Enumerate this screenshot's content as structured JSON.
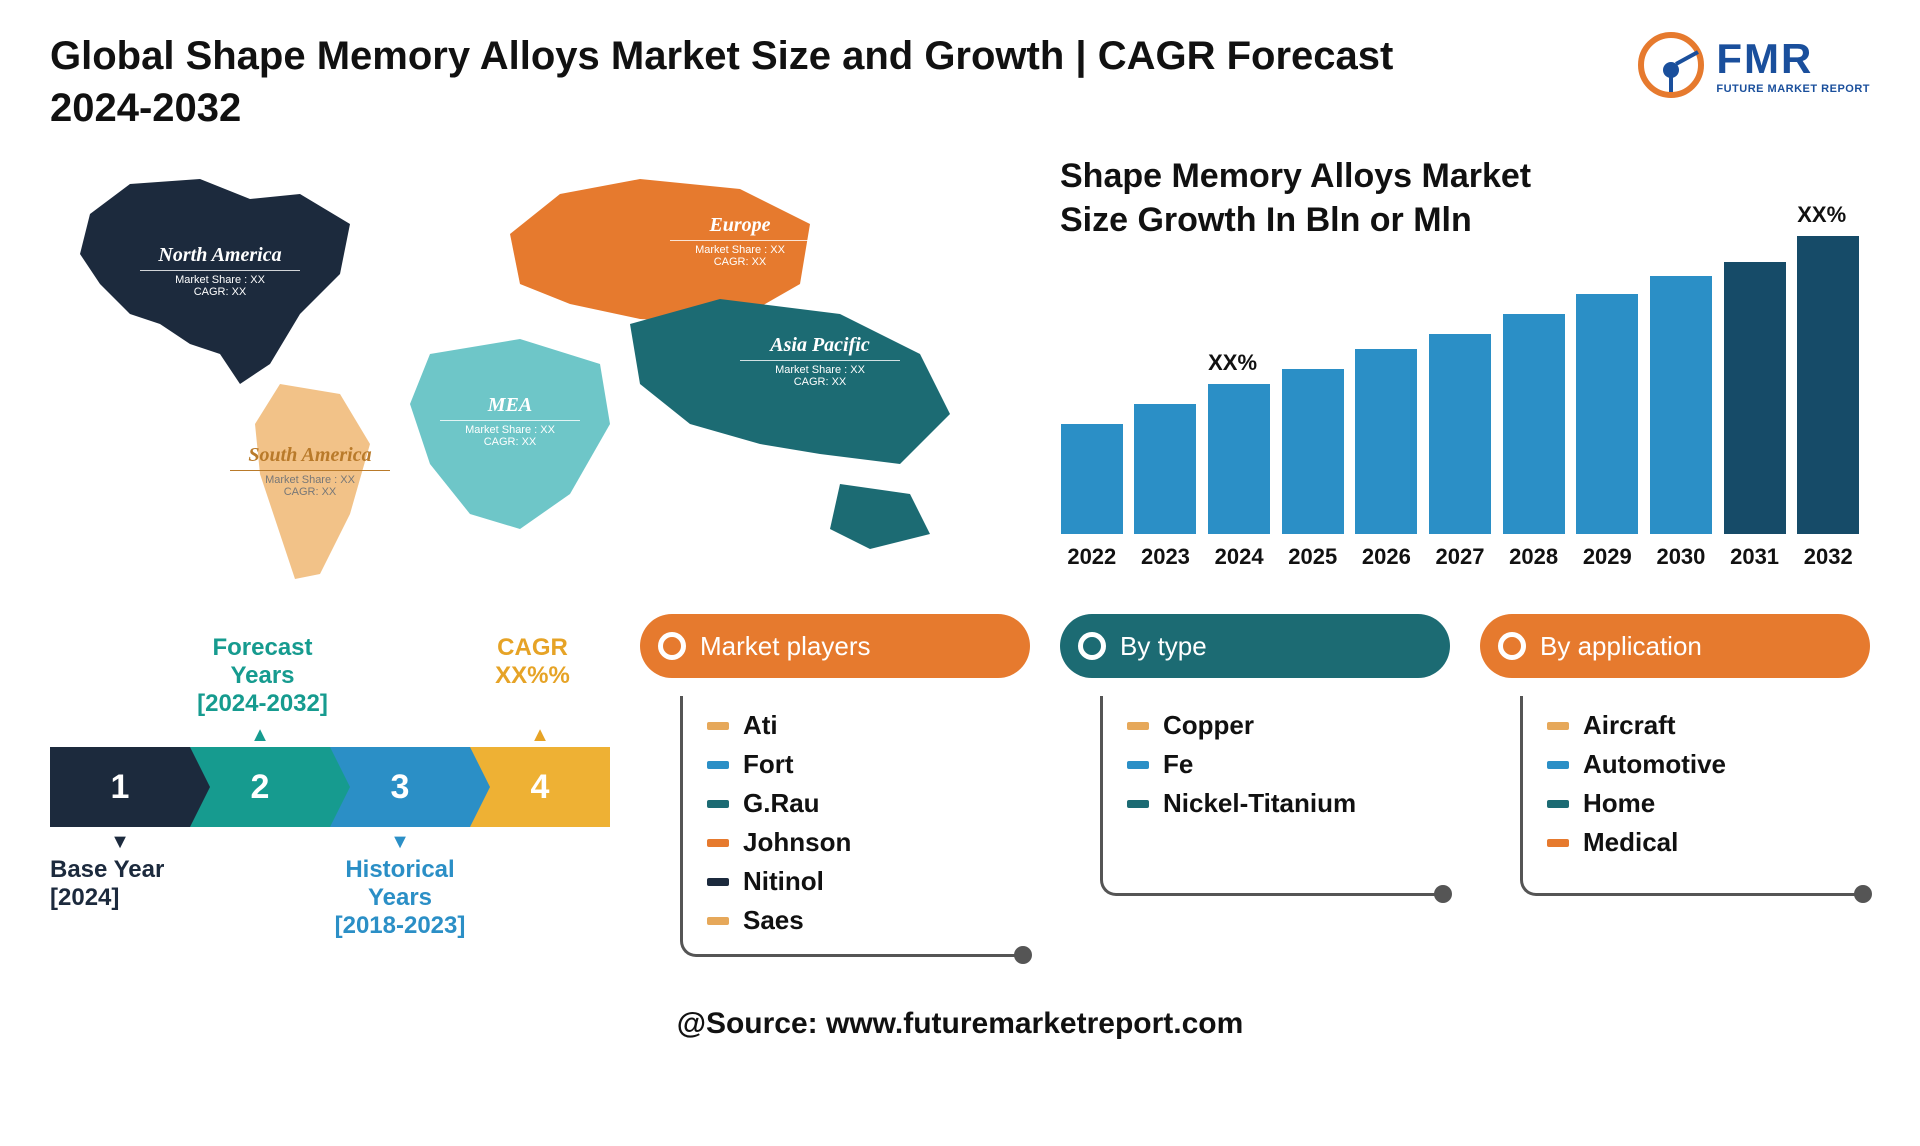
{
  "title": "Global Shape Memory Alloys  Market Size and Growth | CAGR Forecast 2024-2032",
  "logo": {
    "fmr": "FMR",
    "sub": "FUTURE MARKET REPORT"
  },
  "map": {
    "regions": [
      {
        "key": "na",
        "name": "North America",
        "share": "Market Share : XX",
        "cagr": "CAGR: XX",
        "color": "#1c2a3d",
        "label_color": "#ffffff"
      },
      {
        "key": "sa",
        "name": "South America",
        "share": "Market Share : XX",
        "cagr": "CAGR: XX",
        "color": "#f2c288",
        "label_color": "#444444"
      },
      {
        "key": "mea",
        "name": "MEA",
        "share": "Market Share : XX",
        "cagr": "CAGR: XX",
        "color": "#6ec6c8",
        "label_color": "#ffffff"
      },
      {
        "key": "eu",
        "name": "Europe",
        "share": "Market Share : XX",
        "cagr": "CAGR: XX",
        "color": "#e67a2e",
        "label_color": "#ffffff"
      },
      {
        "key": "ap",
        "name": "Asia Pacific",
        "share": "Market Share : XX",
        "cagr": "CAGR: XX",
        "color": "#1c6b73",
        "label_color": "#ffffff"
      }
    ]
  },
  "chart": {
    "type": "bar",
    "title": "Shape Memory Alloys  Market Size Growth In Bln or Mln",
    "years": [
      "2022",
      "2023",
      "2024",
      "2025",
      "2026",
      "2027",
      "2028",
      "2029",
      "2030",
      "2031",
      "2032"
    ],
    "values": [
      110,
      130,
      150,
      165,
      185,
      200,
      220,
      240,
      258,
      272,
      298
    ],
    "bar_color": "#2b8fc6",
    "dark_bar_color": "#164b68",
    "dark_indices": [
      9,
      10
    ],
    "annotations": {
      "2": "XX%",
      "10": "XX%"
    },
    "year_fontsize": 22,
    "background_color": "#ffffff"
  },
  "timeline": {
    "forecast_label": "Forecast Years",
    "forecast_range": "[2024-2032]",
    "cagr_label": "CAGR",
    "cagr_value": "XX%%",
    "base_label": "Base Year",
    "base_value": "[2024]",
    "hist_label": "Historical Years",
    "hist_range": "[2018-2023]",
    "segments": [
      {
        "num": "1",
        "color": "#1c2a3d"
      },
      {
        "num": "2",
        "color": "#169b8f"
      },
      {
        "num": "3",
        "color": "#2b8fc6"
      },
      {
        "num": "4",
        "color": "#eeb134"
      }
    ],
    "colors": {
      "forecast": "#169b8f",
      "cagr": "#e6a326",
      "base": "#1c2a3d",
      "hist": "#2b8fc6"
    }
  },
  "cards": {
    "players": {
      "title": "Market players",
      "header_color": "#e67a2e",
      "items": [
        {
          "label": "Ati",
          "bullet_color": "#e6a85a"
        },
        {
          "label": "Fort",
          "bullet_color": "#2b8fc6"
        },
        {
          "label": "G.Rau",
          "bullet_color": "#1c6b73"
        },
        {
          "label": "Johnson",
          "bullet_color": "#e67a2e"
        },
        {
          "label": "Nitinol",
          "bullet_color": "#1c2a3d"
        },
        {
          "label": "Saes",
          "bullet_color": "#e6a85a"
        }
      ]
    },
    "type_card": {
      "title": "By type",
      "header_color": "#1c6b73",
      "items": [
        {
          "label": "Copper",
          "bullet_color": "#e6a85a"
        },
        {
          "label": "Fe",
          "bullet_color": "#2b8fc6"
        },
        {
          "label": "Nickel-Titanium",
          "bullet_color": "#1c6b73"
        }
      ]
    },
    "application": {
      "title": "By application",
      "header_color": "#e67a2e",
      "items": [
        {
          "label": "Aircraft",
          "bullet_color": "#e6a85a"
        },
        {
          "label": "Automotive",
          "bullet_color": "#2b8fc6"
        },
        {
          "label": "Home",
          "bullet_color": "#1c6b73"
        },
        {
          "label": "Medical",
          "bullet_color": "#e67a2e"
        }
      ]
    }
  },
  "source": "@Source: www.futuremarketreport.com"
}
